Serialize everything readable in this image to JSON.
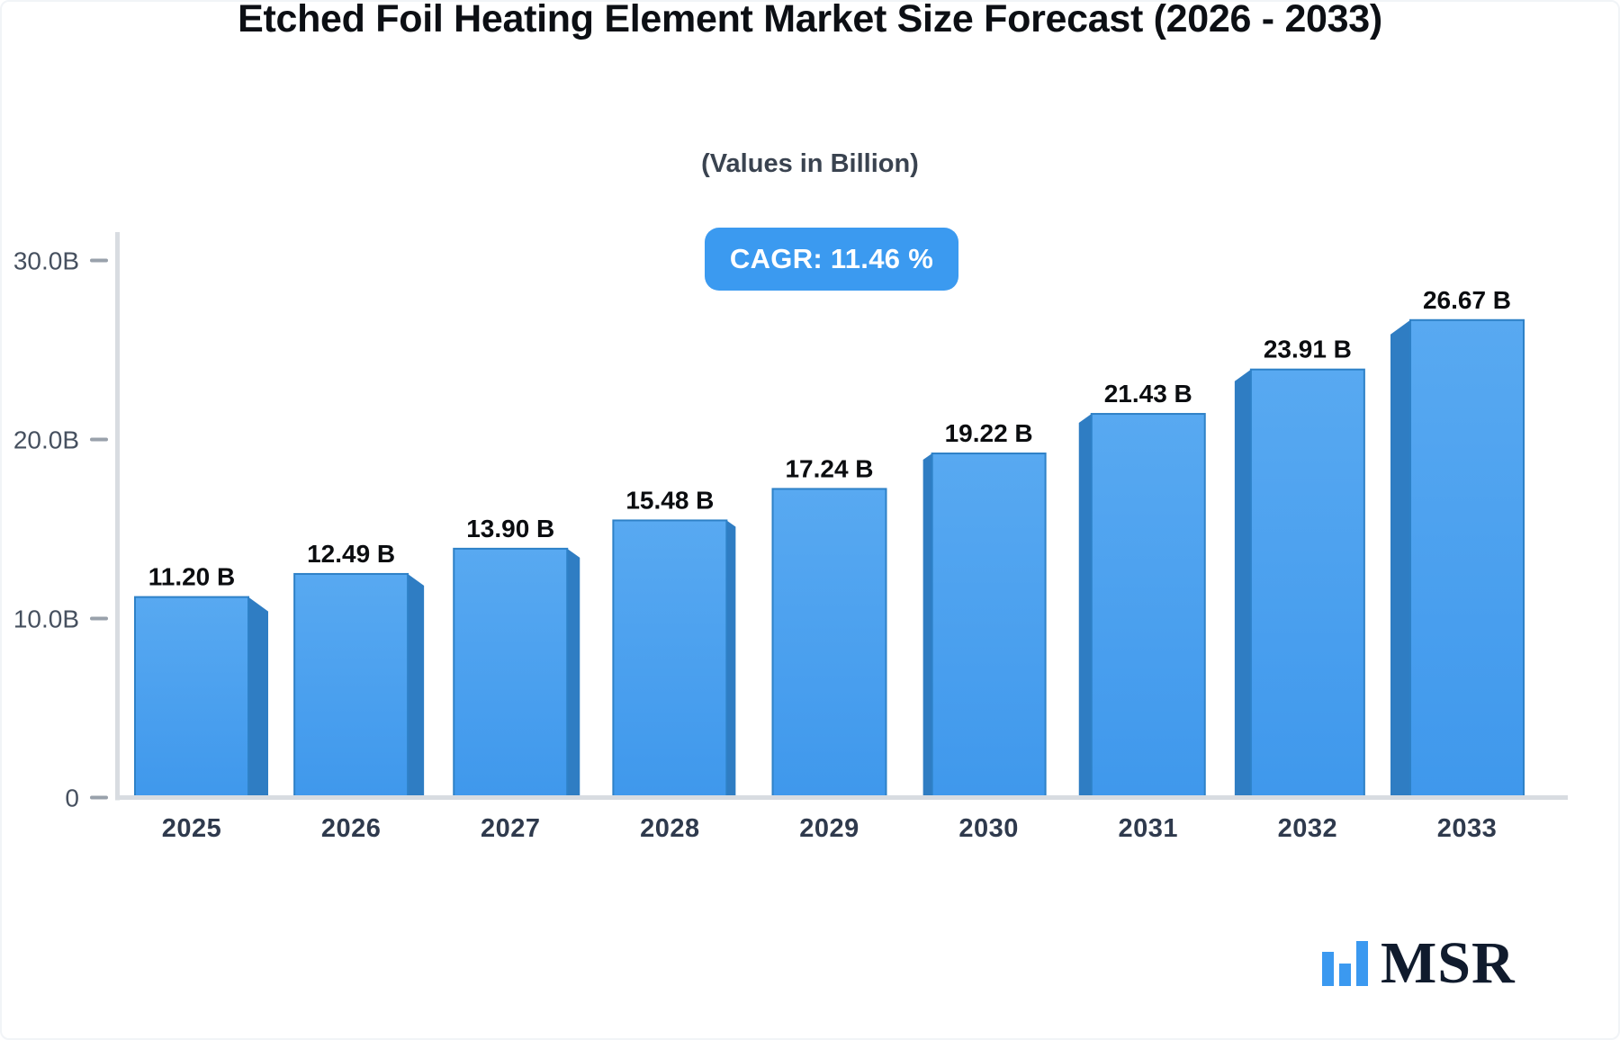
{
  "header": {
    "title": "Etched Foil Heating Element Market Size Forecast (2026 - 2033)",
    "subtitle": "(Values in Billion)"
  },
  "badge": {
    "label": "CAGR: 11.46 %",
    "bg_color": "#3b9af0",
    "text_color": "#ffffff"
  },
  "chart_data": {
    "type": "bar",
    "title": "Etched Foil Heating Element Market Size Forecast (2026 - 2033)",
    "subtitle": "(Values in Billion)",
    "unit": "Billion",
    "cagr_label": "CAGR: 11.46 %",
    "categories": [
      "2025",
      "2026",
      "2027",
      "2028",
      "2029",
      "2030",
      "2031",
      "2032",
      "2033"
    ],
    "values": [
      11.2,
      12.49,
      13.9,
      15.48,
      17.24,
      19.22,
      21.43,
      23.91,
      26.67
    ],
    "value_labels": [
      "11.20 B",
      "12.49 B",
      "13.90 B",
      "15.48 B",
      "17.24 B",
      "19.22 B",
      "21.43 B",
      "23.91 B",
      "26.67 B"
    ],
    "ylim": [
      0,
      30
    ],
    "yticks": [
      {
        "value": 30,
        "label": "30.0B"
      },
      {
        "value": 20,
        "label": "20.0B"
      },
      {
        "value": 10,
        "label": "10.0B"
      },
      {
        "value": 0,
        "label": "0"
      }
    ],
    "grid": false,
    "legend": "none",
    "colors": {
      "bar_face_top": "#58a9f1",
      "bar_face_bottom": "#3f98ec",
      "bar_face_stroke": "#2e81c7",
      "bar_side": "#2f7dc3",
      "axis_line": "#d8dce1",
      "tick_dash": "#99a1ab",
      "tick_label": "#46505f",
      "year_label": "#2f3a4d",
      "value_label": "#0b0d10"
    }
  },
  "logo": {
    "text": "MSR",
    "text_color": "#101b2d",
    "bar_color": "#3b99f0"
  }
}
